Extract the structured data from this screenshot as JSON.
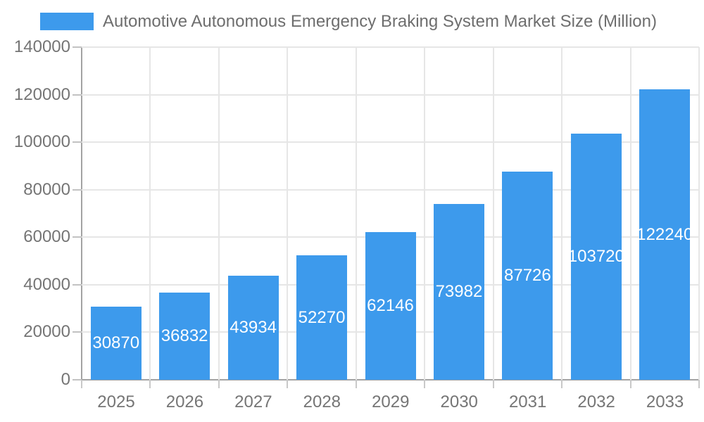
{
  "chart_data": {
    "type": "bar",
    "title": "Automotive Autonomous Emergency Braking System Market Size (Million)",
    "categories": [
      "2025",
      "2026",
      "2027",
      "2028",
      "2029",
      "2030",
      "2031",
      "2032",
      "2033"
    ],
    "values": [
      30870,
      36832,
      43934,
      52270,
      62146,
      73982,
      87726,
      103720,
      122240
    ],
    "series_name": "Automotive Autonomous Emergency Braking System Market Size (Million)",
    "xlabel": "",
    "ylabel": "",
    "ylim": [
      0,
      140000
    ],
    "ytick_step": 20000,
    "ytick_labels": [
      "0",
      "20000",
      "40000",
      "60000",
      "80000",
      "100000",
      "120000",
      "140000"
    ],
    "grid": true,
    "legend_position": "top-left",
    "value_labels_position": "inside-center",
    "colors": {
      "bar": "#3d9aec",
      "bar_value_label": "#ffffff",
      "gridline": "#e6e6e6",
      "axis_line": "#a3a3a3",
      "tick": "#c9c9c9",
      "axis_label": "#757575",
      "title": "#6e6e6e",
      "background": "#ffffff"
    }
  }
}
